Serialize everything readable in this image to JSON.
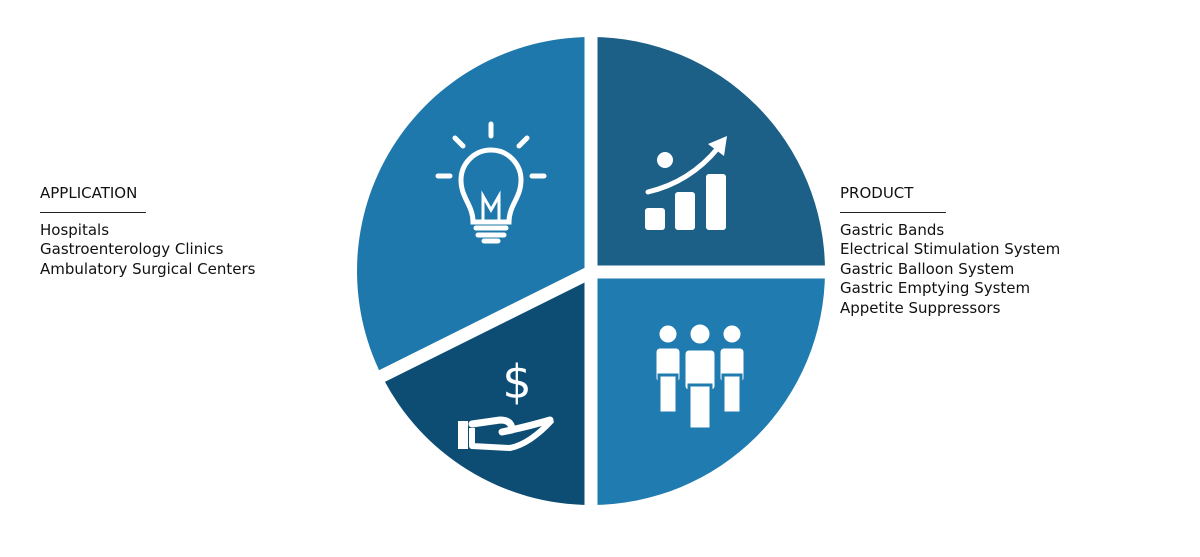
{
  "application": {
    "heading": "APPLICATION",
    "items": [
      "Hospitals",
      "Gastroenterology Clinics",
      "Ambulatory Surgical Centers"
    ]
  },
  "product": {
    "heading": "PRODUCT",
    "items": [
      "Gastric Bands",
      "Electrical Stimulation System",
      "Gastric Balloon System",
      "Gastric Emptying System",
      "Appetite Suppressors"
    ]
  },
  "segments": [
    {
      "icon": "lightbulb-icon",
      "color": "#1f78ab"
    },
    {
      "icon": "growth-chart-icon",
      "color": "#1c6088"
    },
    {
      "icon": "people-group-icon",
      "color": "#1f7bb0"
    },
    {
      "icon": "money-hand-icon",
      "color": "#0d4d74"
    }
  ]
}
